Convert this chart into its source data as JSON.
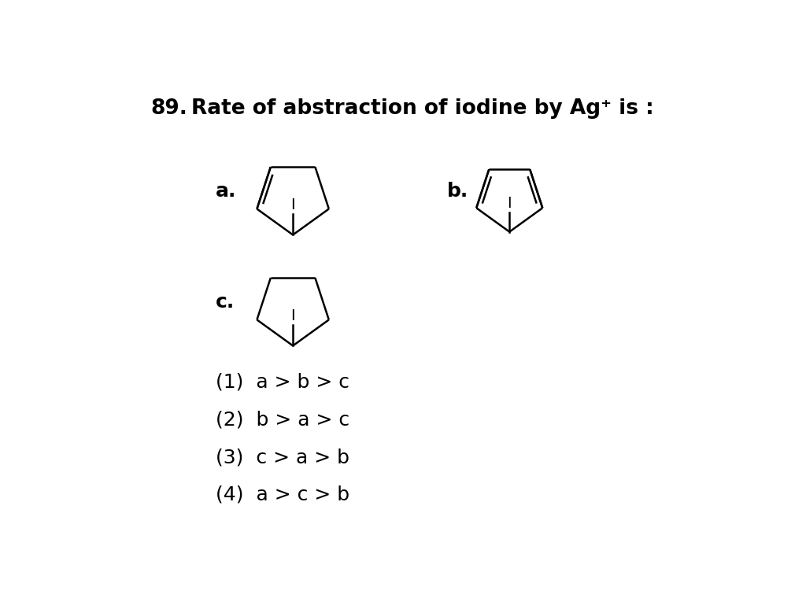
{
  "title_num": "89.",
  "title_text": "Rate of abstraction of iodine by Ag⁺ is :",
  "bg_color": "#ffffff",
  "text_color": "#000000",
  "options": [
    "(1)  a > b > c",
    "(2)  b > a > c",
    "(3)  c > a > b",
    "(4)  a > c > b"
  ],
  "label_a": "a.",
  "label_b": "b.",
  "label_c": "c.",
  "figsize": [
    10.24,
    7.74
  ],
  "dpi": 100
}
